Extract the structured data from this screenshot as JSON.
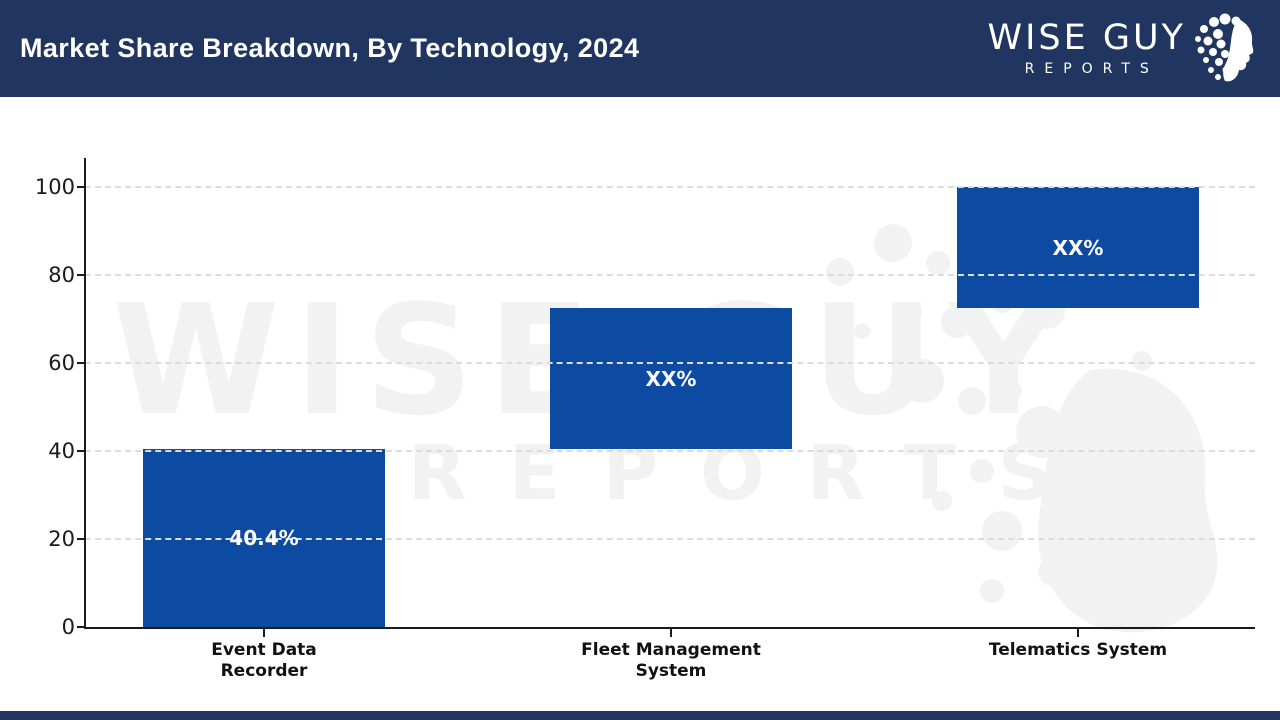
{
  "header": {
    "title": "Market Share Breakdown, By Technology, 2024",
    "logo": {
      "primary": "WISE GUY",
      "secondary": "REPORTS"
    }
  },
  "watermark": {
    "primary": "WISE GUY",
    "secondary": "REPORTS"
  },
  "chart_data": {
    "type": "bar",
    "variant": "stacked-progression-waterfall",
    "title": "Market Share Breakdown, By Technology, 2024",
    "categories": [
      "Event Data\nRecorder",
      "Fleet Management\nSystem",
      "Telematics System"
    ],
    "segments": [
      {
        "category": "Event Data Recorder",
        "start": 0,
        "end": 40.4,
        "label": "40.4%"
      },
      {
        "category": "Fleet Management System",
        "start": 40.4,
        "end": 72.5,
        "label": "XX%"
      },
      {
        "category": "Telematics System",
        "start": 72.5,
        "end": 100,
        "label": "XX%"
      }
    ],
    "yticks": [
      0,
      20,
      40,
      60,
      80,
      100
    ],
    "ylim": [
      0,
      106
    ],
    "xlabel": "",
    "ylabel": "",
    "grid": {
      "axis": "y",
      "style": "dashed",
      "above_bars": true
    },
    "legend": "none",
    "colors": {
      "bar": "#0d4aa1",
      "grid": "#dcdcdc",
      "axis": "#1a1a1a",
      "header_bg": "#20355f",
      "bar_label_text": "#ffffff",
      "watermark": "#f2f2f2"
    }
  }
}
